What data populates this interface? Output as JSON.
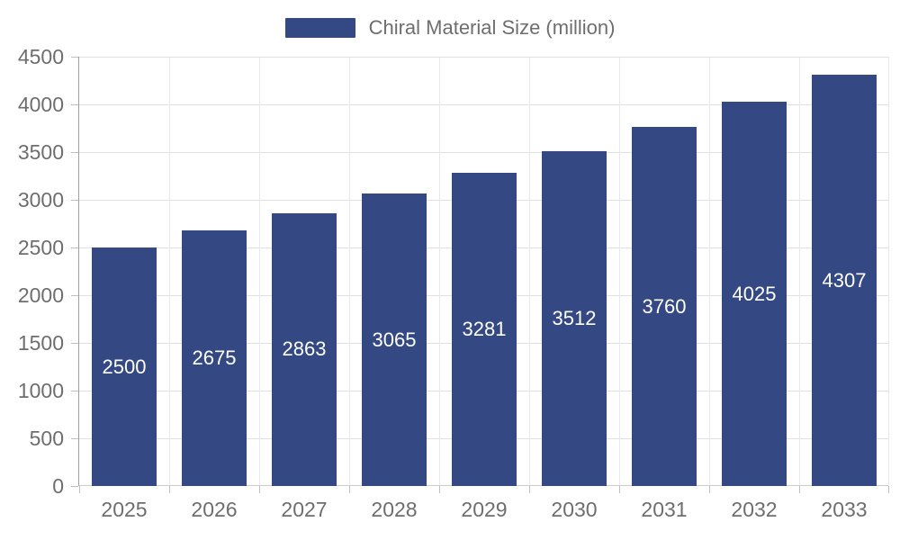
{
  "chart_data": {
    "type": "bar",
    "title": "",
    "legend": {
      "label": "Chiral Material Size (million)",
      "position": "top"
    },
    "categories": [
      "2025",
      "2026",
      "2027",
      "2028",
      "2029",
      "2030",
      "2031",
      "2032",
      "2033"
    ],
    "values": [
      2500,
      2675,
      2863,
      3065,
      3281,
      3512,
      3760,
      4025,
      4307
    ],
    "xlabel": "",
    "ylabel": "",
    "ylim": [
      0,
      4500
    ],
    "ytick_step": 500,
    "yticks": [
      "0",
      "500",
      "1000",
      "1500",
      "2000",
      "2500",
      "3000",
      "3500",
      "4000",
      "4500"
    ],
    "grid": true,
    "colors": {
      "bar": "#344983",
      "bar_label": "#ffffff",
      "axis_text": "#6e6e6e",
      "gridline": "#e0e0e0"
    }
  }
}
